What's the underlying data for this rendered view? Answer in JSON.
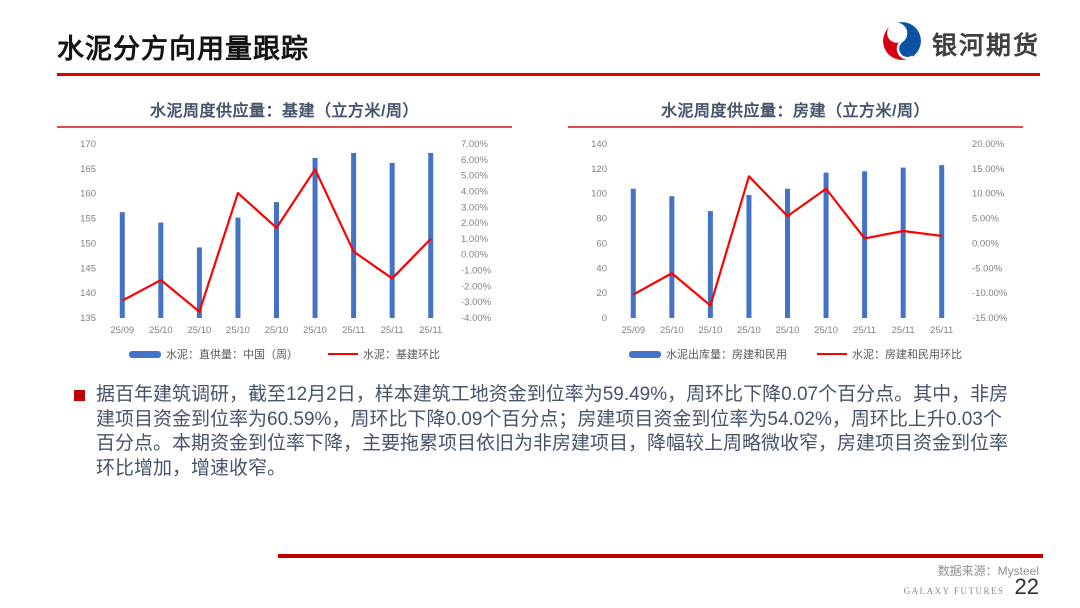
{
  "header": {
    "title": "水泥分方向用量跟踪",
    "logo_text": "银河期货"
  },
  "colors": {
    "bar_blue": "#4472C4",
    "line_red": "#FF0000",
    "accent_red": "#C00000",
    "header_rule_red": "#E00000",
    "title_slate": "#44546A",
    "axis_gray": "#808080"
  },
  "chart_data": [
    {
      "type": "combo",
      "title": "水泥周度供应量：基建（立方米/周）",
      "categories": [
        "25/09",
        "25/10",
        "25/10",
        "25/10",
        "25/10",
        "25/10",
        "25/11",
        "25/11",
        "25/11"
      ],
      "series": [
        {
          "name": "水泥：直供量：中国（周）",
          "type": "bar",
          "axis": "left",
          "color": "#4472C4",
          "values": [
            156.3,
            154.2,
            149.2,
            155.2,
            158.3,
            167.2,
            168.2,
            166.2,
            168.2
          ]
        },
        {
          "name": "水泥：基建环比",
          "type": "line",
          "axis": "right",
          "color": "#FF0000",
          "values": [
            -2.9,
            -1.6,
            -3.6,
            3.9,
            1.7,
            5.4,
            0.2,
            -1.5,
            1.0
          ]
        }
      ],
      "left_axis": {
        "min": 135,
        "max": 170,
        "step": 5,
        "suffix": "",
        "decimals": 0
      },
      "right_axis": {
        "min": -4,
        "max": 7,
        "step": 1,
        "suffix": "%",
        "decimals": 2
      },
      "legend_position": "bottom",
      "grid": false
    },
    {
      "type": "combo",
      "title": "水泥周度供应量：房建（立方米/周）",
      "categories": [
        "25/09",
        "25/10",
        "25/10",
        "25/10",
        "25/10",
        "25/10",
        "25/11",
        "25/11",
        "25/11"
      ],
      "series": [
        {
          "name": "水泥出库量：房建和民用",
          "type": "bar",
          "axis": "left",
          "color": "#4472C4",
          "values": [
            104,
            98,
            86,
            99,
            104,
            117,
            118,
            121,
            123
          ]
        },
        {
          "name": "水泥：房建和民用环比",
          "type": "line",
          "axis": "right",
          "color": "#FF0000",
          "values": [
            -10.3,
            -6.0,
            -12.5,
            13.5,
            5.5,
            11.0,
            1.0,
            2.5,
            1.5
          ]
        }
      ],
      "left_axis": {
        "min": 0,
        "max": 140,
        "step": 20,
        "suffix": "",
        "decimals": 0
      },
      "right_axis": {
        "min": -15,
        "max": 20,
        "step": 5,
        "suffix": "%",
        "decimals": 2
      },
      "legend_position": "bottom",
      "grid": false
    }
  ],
  "commentary": {
    "text": "据百年建筑调研，截至12月2日，样本建筑工地资金到位率为59.49%，周环比下降0.07个百分点。其中，非房建项目资金到位率为60.59%，周环比下降0.09个百分点；房建项目资金到位率为54.02%，周环比上升0.03个百分点。本期资金到位率下降，主要拖累项目依旧为非房建项目，降幅较上周略微收窄，房建项目资金到位率环比增加，增速收窄。"
  },
  "footer": {
    "source": "数据来源：Mysteel",
    "brand": "GALAXY FUTURES",
    "page_number": "22"
  }
}
